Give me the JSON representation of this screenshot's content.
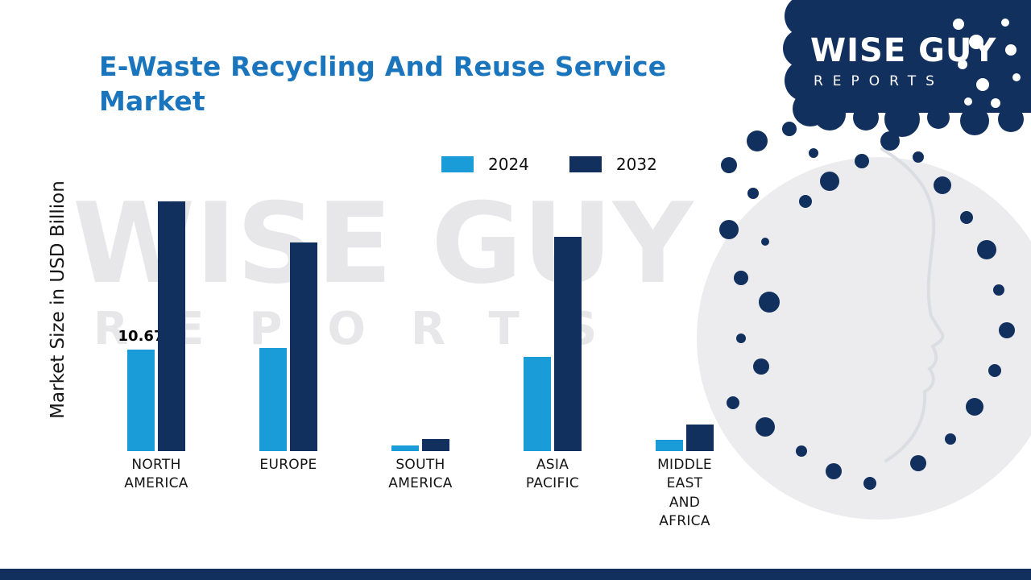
{
  "page": {
    "title": "E-Waste Recycling And Reuse Service Market"
  },
  "brand": {
    "logo_line1": "WISE GUY",
    "logo_line2": "REPORTS",
    "watermark_line1": "WISE GUY",
    "watermark_line2": "REPORTS"
  },
  "colors": {
    "title_blue": "#1b75bc",
    "series_2024": "#1a9cd9",
    "series_2032": "#12305e",
    "watermark_gray": "#e7e7ea",
    "footer_navy": "#12305e"
  },
  "chart_data": {
    "type": "bar",
    "title": "",
    "xlabel": "",
    "ylabel": "Market Size in USD Billion",
    "categories": [
      "NORTH AMERICA",
      "EUROPE",
      "SOUTH AMERICA",
      "ASIA PACIFIC",
      "MIDDLE EAST AND AFRICA"
    ],
    "tick_labels": [
      "NORTH\nAMERICA",
      "EUROPE",
      "SOUTH\nAMERICA",
      "ASIA\nPACIFIC",
      "MIDDLE\nEAST\nAND\nAFRICA"
    ],
    "series": [
      {
        "name": "2024",
        "color": "#1a9cd9",
        "values": [
          10.67,
          10.9,
          0.6,
          9.9,
          1.2
        ]
      },
      {
        "name": "2032",
        "color": "#12305e",
        "values": [
          26.3,
          22.0,
          1.3,
          22.6,
          2.8
        ]
      }
    ],
    "ylim": [
      0,
      28
    ],
    "grid": false,
    "legend_position": "top",
    "annotations": [
      {
        "text": "10.67",
        "category_index": 0,
        "series_index": 0
      }
    ]
  }
}
